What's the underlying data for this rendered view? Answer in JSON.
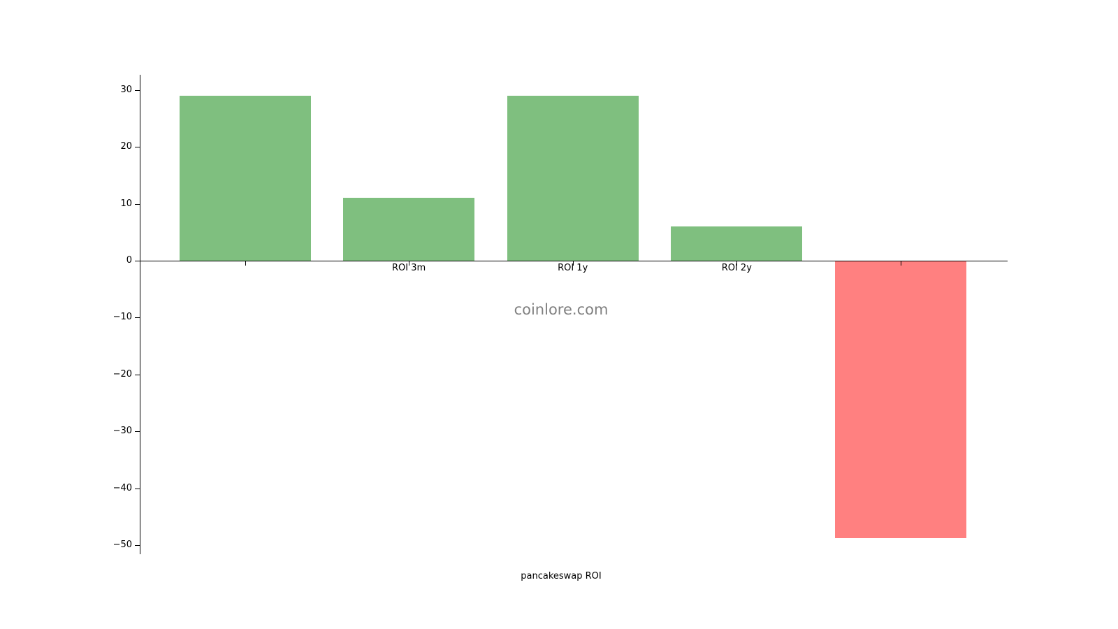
{
  "page": {
    "background_color": "#ffffff"
  },
  "watermark": {
    "text": "coinlore.com",
    "color": "#808080"
  },
  "chart_data": {
    "type": "bar",
    "title": "",
    "xlabel": "pancakeswap ROI",
    "ylabel": "",
    "categories": [
      "",
      "ROI 3m",
      "ROI 1y",
      "ROI 2y",
      ""
    ],
    "values": [
      29,
      11,
      29,
      6,
      -48.6
    ],
    "positive_color": "#7fbf7f",
    "negative_color": "#ff8080",
    "bar_colors": [
      "#7fbf7f",
      "#7fbf7f",
      "#7fbf7f",
      "#7fbf7f",
      "#ff8080"
    ],
    "yticks": [
      30,
      20,
      10,
      0,
      -10,
      -20,
      -30,
      -40,
      -50
    ],
    "ytick_labels": [
      "30",
      "20",
      "10",
      "0",
      "−10",
      "−20",
      "−30",
      "−40",
      "−50"
    ],
    "ylim": [
      -52.5,
      32.5
    ],
    "grid": false,
    "legend_position": "none",
    "axis_color": "#000000",
    "tick_label_color": "#000000"
  }
}
